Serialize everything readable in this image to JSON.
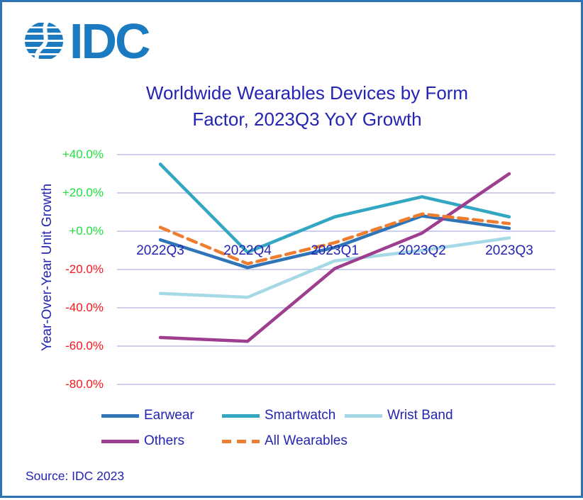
{
  "logo": {
    "text": "IDC"
  },
  "title": {
    "line1": "Worldwide Wearables Devices by Form",
    "line2": "Factor, 2023Q3 YoY Growth"
  },
  "source": "Source: IDC 2023",
  "colors": {
    "text_blue": "#2424b4",
    "logo_blue": "#1b7ac0",
    "border_blue": "#2d74b6",
    "gridline": "#bdbdee",
    "tick_positive": "#1ee13e",
    "tick_negative": "#f9141c"
  },
  "chart_data": {
    "type": "line",
    "title": "Worldwide Wearables Devices by Form Factor, 2023Q3 YoY Growth",
    "ylabel": "Year-Over-Year Unit Growth",
    "units": "percent YoY unit growth",
    "categories": [
      "2022Q3",
      "2022Q4",
      "2023Q1",
      "2023Q2",
      "2023Q3"
    ],
    "ylim": [
      -80,
      40
    ],
    "grid": true,
    "legend_position": "bottom",
    "yticks": [
      {
        "label": "+40.0%",
        "value": 40
      },
      {
        "label": "+20.0%",
        "value": 20
      },
      {
        "label": "+0.0%",
        "value": 0
      },
      {
        "label": "-20.0%",
        "value": -20
      },
      {
        "label": "-40.0%",
        "value": -40
      },
      {
        "label": "-60.0%",
        "value": -60
      },
      {
        "label": "-80.0%",
        "value": -80
      }
    ],
    "series": [
      {
        "name": "Earwear",
        "color": "#2e74b6",
        "style": "solid",
        "values": [
          -4.5,
          -19.0,
          -8.5,
          8.0,
          1.5
        ]
      },
      {
        "name": "Smartwatch",
        "color": "#33a7c2",
        "style": "solid",
        "values": [
          35.0,
          -11.0,
          7.5,
          18.0,
          7.5
        ]
      },
      {
        "name": "Wrist Band",
        "color": "#a6d9e6",
        "style": "solid",
        "values": [
          -32.5,
          -34.5,
          -15.5,
          -10.0,
          -3.5
        ]
      },
      {
        "name": "Others",
        "color": "#9e3e8e",
        "style": "solid",
        "values": [
          -55.5,
          -57.5,
          -19.5,
          -1.0,
          30.0
        ]
      },
      {
        "name": "All Wearables",
        "color": "#ef7d2f",
        "style": "dashed",
        "values": [
          2.0,
          -17.0,
          -6.0,
          9.0,
          4.0
        ]
      }
    ]
  }
}
